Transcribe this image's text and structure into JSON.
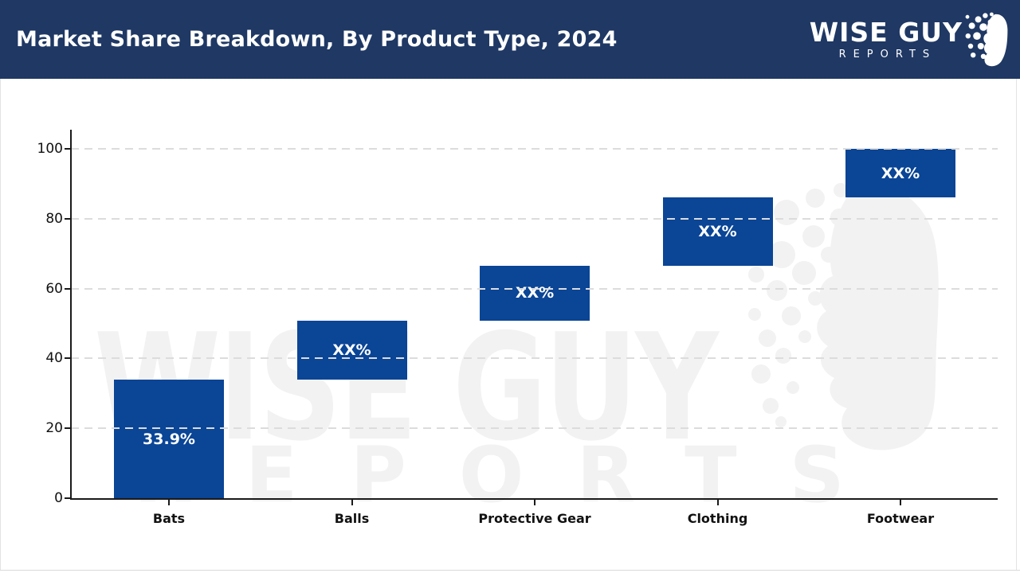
{
  "header": {
    "title": "Market Share Breakdown, By Product Type, 2024",
    "logo": {
      "wordmark": "WISE GUY",
      "subtext": "REPORTS"
    }
  },
  "watermark": {
    "wordmark": "WISE GUY",
    "subtext": "REPORTS"
  },
  "chart_data": {
    "type": "bar",
    "subtype": "waterfall",
    "title": "Market Share Breakdown, By Product Type, 2024",
    "categories": [
      "Bats",
      "Balls",
      "Protective Gear",
      "Clothing",
      "Footwear"
    ],
    "segments": [
      {
        "category": "Bats",
        "start": 0,
        "end": 33.9,
        "label": "33.9%"
      },
      {
        "category": "Balls",
        "start": 33.9,
        "end": 50.9,
        "label": "XX%"
      },
      {
        "category": "Protective Gear",
        "start": 50.9,
        "end": 66.6,
        "label": "XX%"
      },
      {
        "category": "Clothing",
        "start": 66.6,
        "end": 86.1,
        "label": "XX%"
      },
      {
        "category": "Footwear",
        "start": 86.1,
        "end": 100,
        "label": "XX%"
      }
    ],
    "yticks": [
      0,
      20,
      40,
      60,
      80,
      100
    ],
    "ylim": [
      0,
      105.5
    ],
    "xlabel": "",
    "ylabel": "",
    "grid": "horizontal-dashed",
    "legend": "none",
    "colors": {
      "bar": "#0a4596",
      "grid": "#dcdcdc",
      "axis": "#1a1a1a",
      "header_bg": "#1f3864",
      "bar_label": "#ffffff",
      "watermark": "#f2f2f2"
    }
  }
}
